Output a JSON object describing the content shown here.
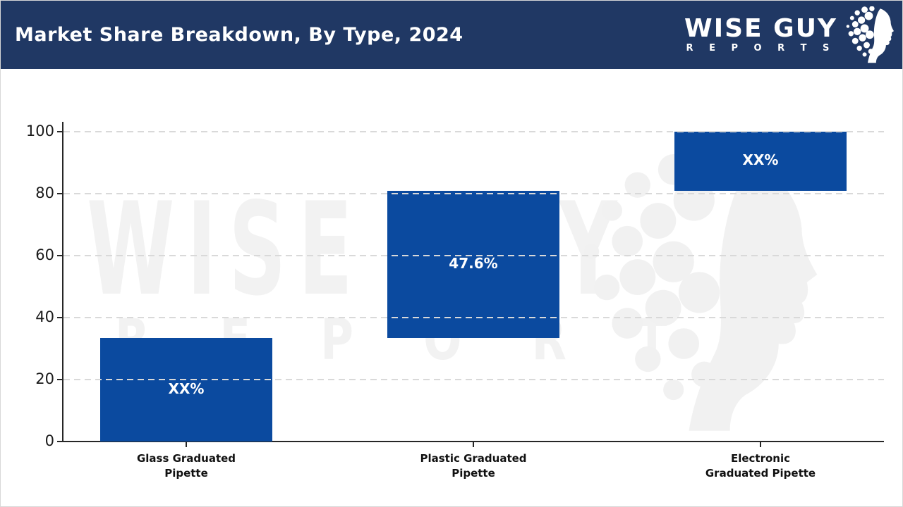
{
  "header": {
    "title": "Market Share Breakdown, By Type, 2024",
    "bg_color": "#203864",
    "logo": {
      "brand_line1": "WISE GUY",
      "brand_line2": "R E P O R T S",
      "face_icon": "dotted-face-profile"
    }
  },
  "watermark": {
    "line1": "WISE GUY",
    "line2": "R E P O R T S",
    "face_icon": "dotted-face-profile"
  },
  "chart_data": {
    "type": "bar",
    "subtype": "waterfall",
    "title": "Market Share Breakdown, By Type, 2024",
    "categories": [
      "Glass Graduated Pipette",
      "Plastic Graduated Pipette",
      "Electronic Graduated Pipette"
    ],
    "category_lines": [
      [
        "Glass Graduated",
        "Pipette"
      ],
      [
        "Plastic Graduated",
        "Pipette"
      ],
      [
        "Electronic",
        "Graduated Pipette"
      ]
    ],
    "bars": [
      {
        "category": "Glass Graduated Pipette",
        "start": 0,
        "end": 33.3,
        "label": "XX%"
      },
      {
        "category": "Plastic Graduated Pipette",
        "start": 33.3,
        "end": 80.9,
        "label": "47.6%"
      },
      {
        "category": "Electronic Graduated Pipette",
        "start": 80.9,
        "end": 100,
        "label": "XX%"
      }
    ],
    "bar_color": "#0b4a9f",
    "value_label_color": "#ffffff",
    "xlabel": "",
    "ylabel": "",
    "ylim": [
      0,
      104
    ],
    "yticks": [
      0,
      20,
      40,
      60,
      80,
      100
    ],
    "grid": {
      "horizontal": true,
      "style": "dashed",
      "color": "#d9d9d9"
    },
    "legend": "none"
  }
}
